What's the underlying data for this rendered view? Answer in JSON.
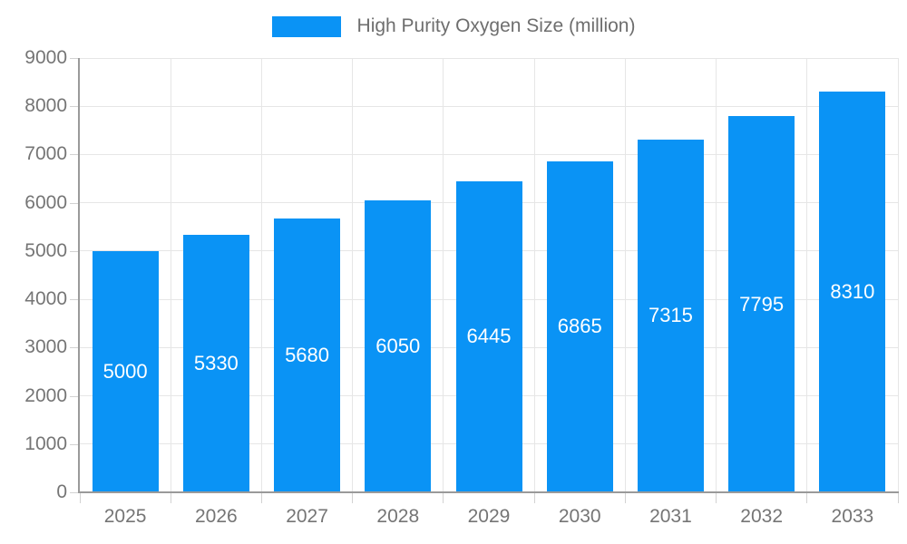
{
  "legend": {
    "label": "High Purity Oxygen Size (million)"
  },
  "chart_data": {
    "type": "bar",
    "title": "High Purity Oxygen Size (million)",
    "series_name": "High Purity Oxygen Size (million)",
    "categories": [
      "2025",
      "2026",
      "2027",
      "2028",
      "2029",
      "2030",
      "2031",
      "2032",
      "2033"
    ],
    "values": [
      5000,
      5330,
      5680,
      6050,
      6445,
      6865,
      7315,
      7795,
      8310
    ],
    "bar_labels": [
      "5000",
      "5330",
      "5680",
      "6050",
      "6445",
      "6865",
      "7315",
      "7795",
      "8310"
    ],
    "xlabel": "",
    "ylabel": "",
    "ylim": [
      0,
      9000
    ],
    "ytick_step": 1000,
    "ytick_labels": [
      "0",
      "1000",
      "2000",
      "3000",
      "4000",
      "5000",
      "6000",
      "7000",
      "8000",
      "9000"
    ],
    "grid": true,
    "legend_position": "top",
    "bar_labels_inside": true,
    "colors": {
      "bar": "#0a93f5",
      "bar_label": "#ffffff",
      "axis_text": "#757575",
      "legend_text": "#6e6e6e",
      "gridline": "#e6e6e6",
      "tick": "#d2d2d2",
      "axis_line": "#9a9a9a",
      "background": "#ffffff"
    }
  }
}
